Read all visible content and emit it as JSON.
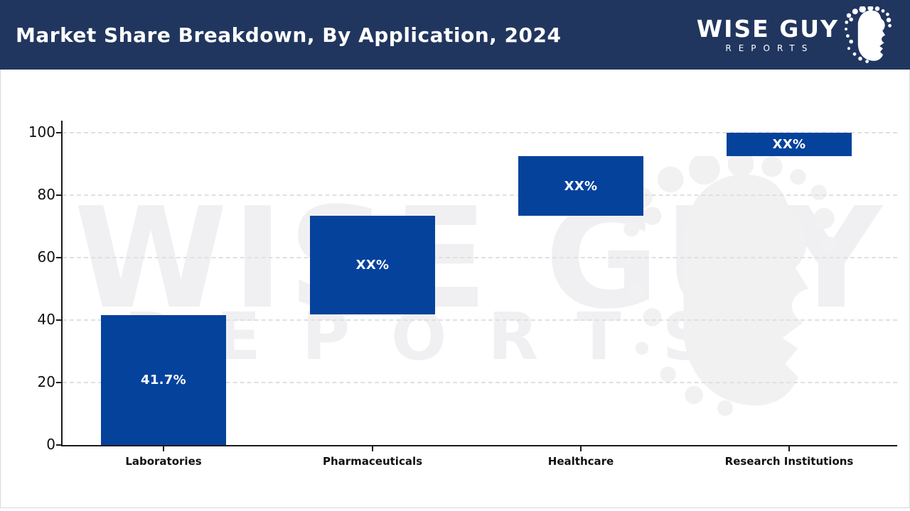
{
  "header": {
    "title": "Market Share Breakdown, By Application, 2024",
    "brand": {
      "line1": "WISE GUY",
      "line2": "REPORTS"
    }
  },
  "watermark": {
    "line1": "WISE GUY",
    "line2": "REPORTS"
  },
  "colors": {
    "header_bg": "#21365f",
    "bar": "#05429c",
    "bar_label": "#ffffff",
    "axis": "#1a1a1a",
    "grid": "#e0e0e0",
    "watermark": "#f0f0f2"
  },
  "chart_data": {
    "type": "bar",
    "subtype": "waterfall",
    "title": "Market Share Breakdown, By Application, 2024",
    "categories": [
      "Laboratories",
      "Pharmaceuticals",
      "Healthcare",
      "Research Institutions"
    ],
    "segments": [
      {
        "category": "Laboratories",
        "start": 0,
        "end": 41.7,
        "label": "41.7%"
      },
      {
        "category": "Pharmaceuticals",
        "start": 41.8,
        "end": 73.3,
        "label": "XX%"
      },
      {
        "category": "Healthcare",
        "start": 73.4,
        "end": 92.5,
        "label": "XX%"
      },
      {
        "category": "Research Institutions",
        "start": 92.5,
        "end": 100,
        "label": "XX%"
      }
    ],
    "ylim": [
      0,
      100
    ],
    "yticks": [
      0,
      20,
      40,
      60,
      80,
      100
    ],
    "xlabel": "",
    "ylabel": "",
    "grid": "horizontal-dashed",
    "legend": "none",
    "bar_color": "#05429c",
    "value_label_color": "#ffffff"
  }
}
